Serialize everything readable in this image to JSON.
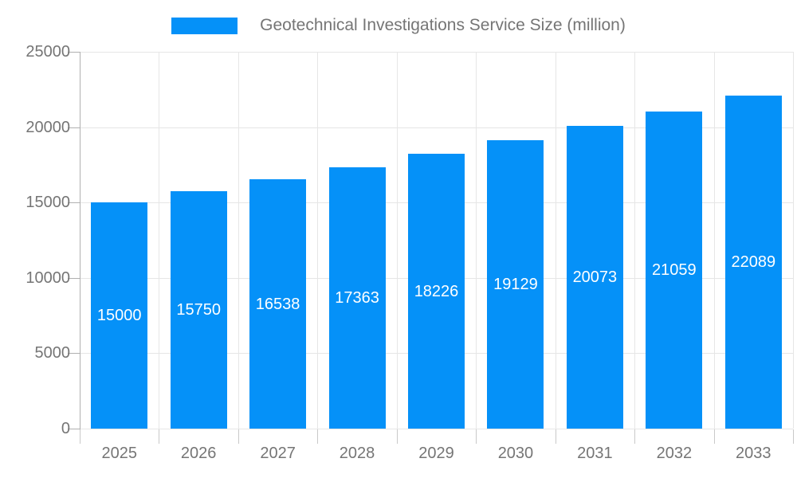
{
  "legend": {
    "label": "Geotechnical Investigations Service Size (million)"
  },
  "colors": {
    "bar": "#0591f8",
    "label_text": "#757575",
    "bar_value_text": "#ffffff",
    "gridline": "#e6e6e6",
    "axis_line": "#b0b0b0",
    "x_tick": "#c9c9c9"
  },
  "chart_data": {
    "type": "bar",
    "title": "Geotechnical Investigations Service Size (million)",
    "categories": [
      "2025",
      "2026",
      "2027",
      "2028",
      "2029",
      "2030",
      "2031",
      "2032",
      "2033"
    ],
    "series": [
      {
        "name": "Geotechnical Investigations Service Size (million)",
        "values": [
          15000,
          15750,
          16538,
          17363,
          18226,
          19129,
          20073,
          21059,
          22089
        ]
      }
    ],
    "xlabel": "",
    "ylabel": "",
    "ylim": [
      0,
      25000
    ],
    "y_ticks": [
      0,
      5000,
      10000,
      15000,
      20000,
      25000
    ],
    "grid": true,
    "legend_position": "top",
    "bar_labels_inside": true
  }
}
